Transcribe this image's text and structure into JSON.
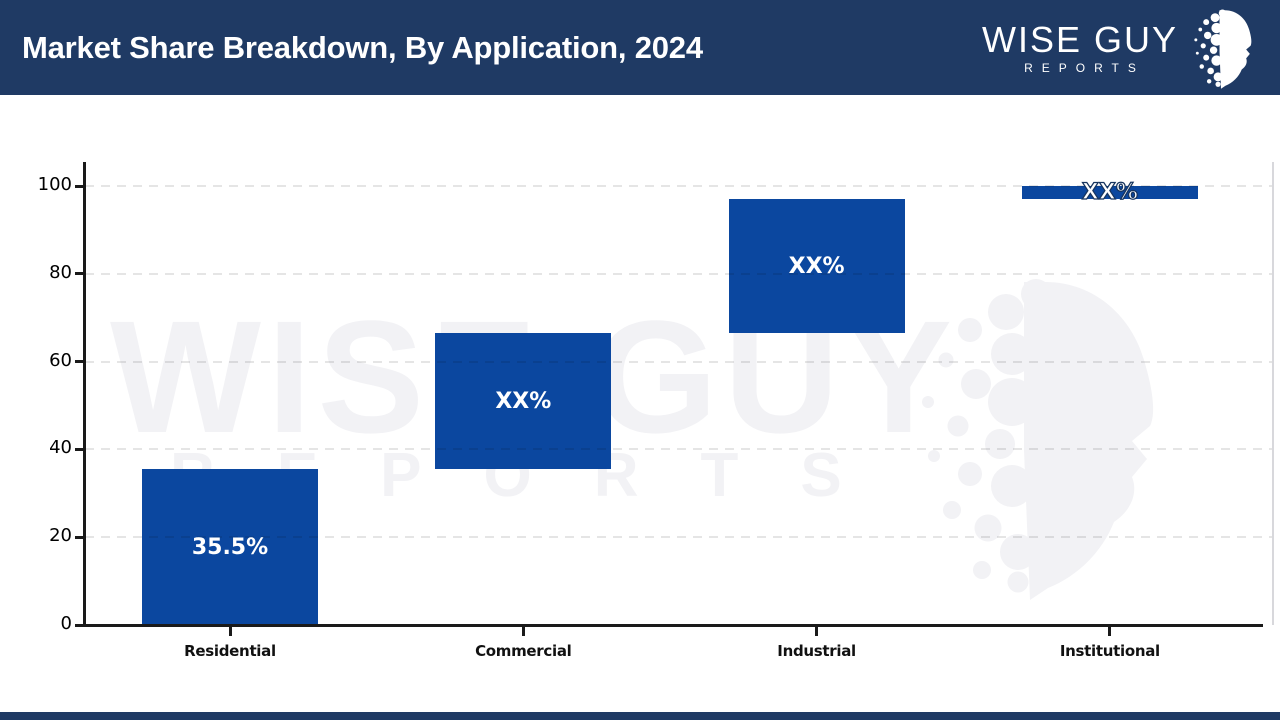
{
  "header": {
    "title": "Market Share Breakdown, By Application, 2024",
    "logo": {
      "line1": "WISE GUY",
      "line2": "REPORTS"
    }
  },
  "watermark": {
    "line1": "WISE GUY",
    "line2": "REPORTS"
  },
  "chart_data": {
    "type": "bar",
    "subtype": "waterfall-breakdown",
    "title": "Market Share Breakdown, By Application, 2024",
    "categories": [
      "Residential",
      "Commercial",
      "Industrial",
      "Institutional"
    ],
    "segments": [
      {
        "category": "Residential",
        "start": 0,
        "end": 35.5,
        "label": "35.5%"
      },
      {
        "category": "Commercial",
        "start": 35.5,
        "end": 66.5,
        "label": "XX%"
      },
      {
        "category": "Industrial",
        "start": 66.5,
        "end": 97,
        "label": "XX%"
      },
      {
        "category": "Institutional",
        "start": 97,
        "end": 100,
        "label": "XX%"
      }
    ],
    "yticks": [
      0,
      20,
      40,
      60,
      80,
      100
    ],
    "ylim": [
      0,
      105
    ],
    "xlabel": "",
    "ylabel": "",
    "grid": "horizontal-dashed",
    "legend": "none",
    "bar_color": "#0b479f",
    "bar_label_color": "#ffffff",
    "band_color": "#1f3a64",
    "axis_color": "#1a1a1a"
  }
}
